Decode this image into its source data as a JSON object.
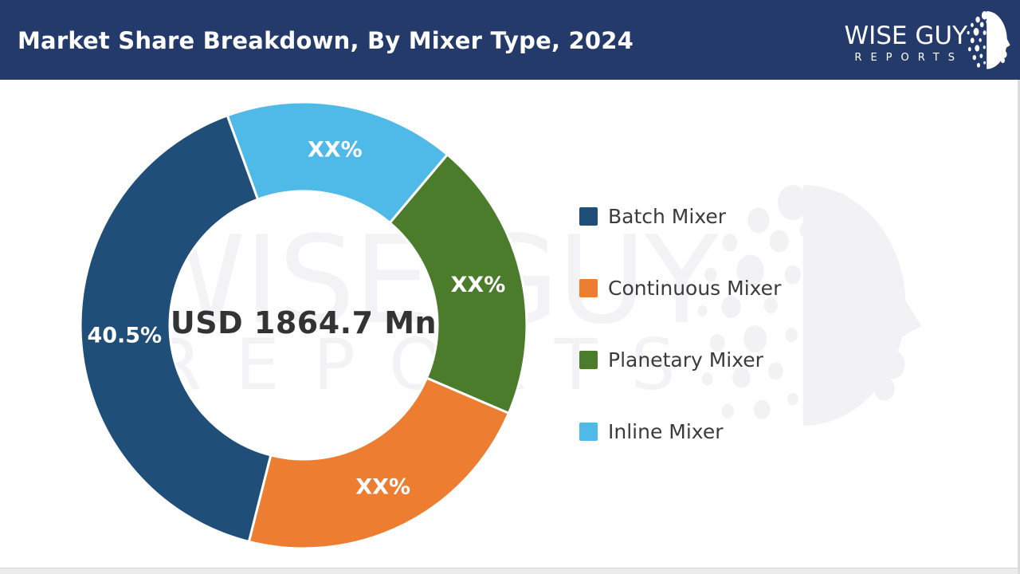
{
  "header": {
    "title": "Market Share Breakdown, By Mixer Type, 2024",
    "logo": {
      "title": "WISE GUY",
      "subtitle": "REPORTS"
    }
  },
  "watermark": {
    "line1": "WISE GUY",
    "line2": "REPORTS"
  },
  "chart_data": {
    "type": "pie",
    "variant": "donut",
    "title": "Market Share Breakdown, By Mixer Type, 2024",
    "center_label": "USD 1864.7 Mn",
    "legend_position": "right",
    "start_angle_deg": -20,
    "inner_radius_ratio": 0.6,
    "segments": [
      {
        "label": "Batch Mixer",
        "value_pct": 40.5,
        "display_label": "40.5%",
        "color": "#1F4E79"
      },
      {
        "label": "Continuous Mixer",
        "value_pct": 22.5,
        "display_label": "XX%",
        "color": "#ED7D31"
      },
      {
        "label": "Planetary Mixer",
        "value_pct": 20.3,
        "display_label": "XX%",
        "color": "#4A7C2B"
      },
      {
        "label": "Inline Mixer",
        "value_pct": 16.7,
        "display_label": "XX%",
        "color": "#4FB9E8"
      }
    ]
  }
}
